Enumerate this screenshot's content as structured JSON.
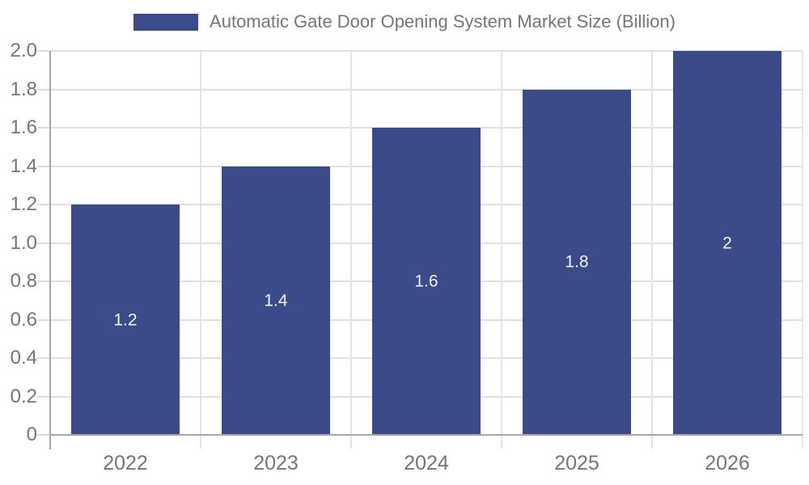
{
  "chart_data": {
    "type": "bar",
    "title": "",
    "legend": {
      "label": "Automatic Gate Door Opening System Market Size (Billion)",
      "position": "top-center"
    },
    "categories": [
      "2022",
      "2023",
      "2024",
      "2025",
      "2026"
    ],
    "series": [
      {
        "name": "Automatic Gate Door Opening System Market Size (Billion)",
        "values": [
          1.2,
          1.4,
          1.6,
          1.8,
          2
        ],
        "value_labels": [
          "1.2",
          "1.4",
          "1.6",
          "1.8",
          "2"
        ]
      }
    ],
    "xlabel": "",
    "ylabel": "",
    "ylim": [
      0,
      2
    ],
    "ytick_labels": [
      "0",
      "0.2",
      "0.4",
      "0.6",
      "0.8",
      "1.0",
      "1.2",
      "1.4",
      "1.6",
      "1.8",
      "2.0"
    ],
    "grid": "horizontal and vertical category boundaries",
    "colors": {
      "bar": "#3b4a88",
      "grid": "#e0e0e0",
      "axis": "#a6a6a6",
      "tick_text": "#757575",
      "legend_text": "#757575",
      "value_label_text": "#f2f3f5",
      "background": "#ffffff"
    }
  }
}
